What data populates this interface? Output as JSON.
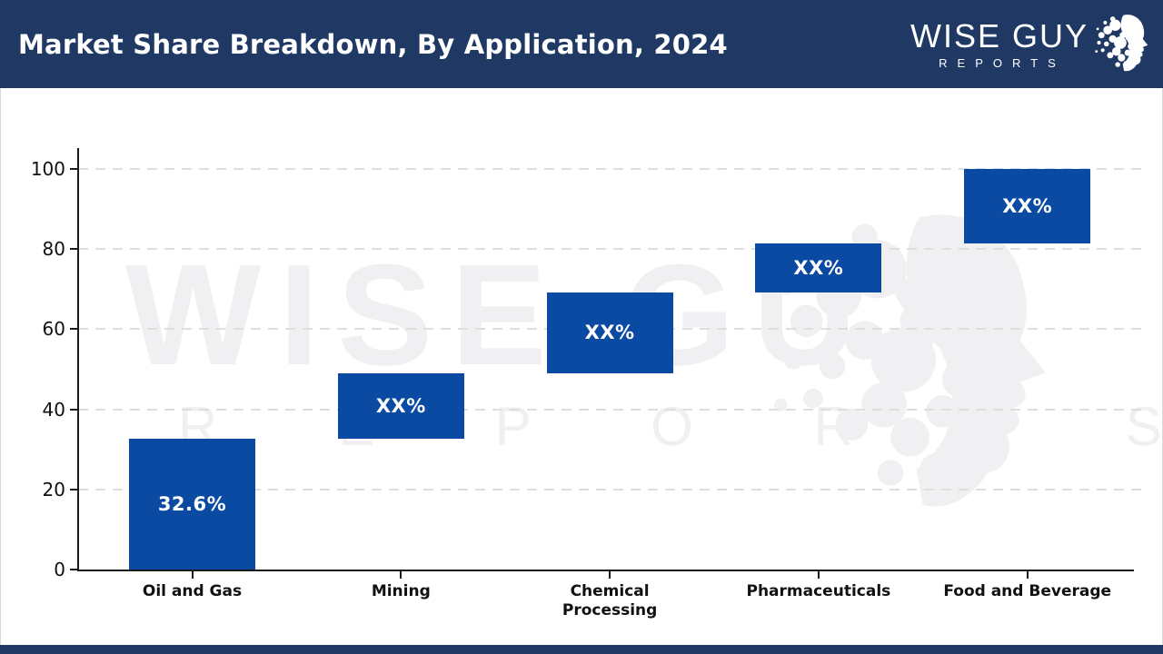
{
  "header": {
    "title": "Market Share Breakdown, By Application, 2024",
    "bg_color": "#203864",
    "text_color": "#ffffff",
    "logo": {
      "brand_top": "WISE GUY",
      "brand_bottom": "REPORTS",
      "head_icon": "dotted-head-profile-icon"
    }
  },
  "watermark": {
    "line1": "WISE GUY",
    "line2": "R E P O R T S",
    "head_icon": "dotted-head-profile-watermark",
    "color": "#f0f0f3"
  },
  "chart_data": {
    "type": "bar",
    "subtype": "waterfall",
    "title": "Market Share Breakdown, By Application, 2024",
    "xlabel": "",
    "ylabel": "",
    "categories": [
      "Oil and Gas",
      "Mining",
      "Chemical Processing",
      "Pharmaceuticals",
      "Food and Beverage"
    ],
    "category_display_lines": [
      [
        "Oil and Gas"
      ],
      [
        "Mining"
      ],
      [
        "Chemical",
        "Processing"
      ],
      [
        "Pharmaceuticals"
      ],
      [
        "Food and Beverage"
      ]
    ],
    "segments": [
      {
        "category": "Oil and Gas",
        "start": 0,
        "end": 32.6,
        "label": "32.6%"
      },
      {
        "category": "Mining",
        "start": 32.6,
        "end": 49.0,
        "label": "XX%"
      },
      {
        "category": "Chemical Processing",
        "start": 49.0,
        "end": 69.2,
        "label": "XX%"
      },
      {
        "category": "Pharmaceuticals",
        "start": 69.2,
        "end": 81.4,
        "label": "XX%"
      },
      {
        "category": "Food and Beverage",
        "start": 81.4,
        "end": 100,
        "label": "XX%"
      }
    ],
    "yticks": [
      0,
      20,
      40,
      60,
      80,
      100
    ],
    "ylim": [
      0,
      105
    ],
    "grid": "horizontal dashed at 20/40/60/80/100",
    "legend": "none",
    "bar_color": "#0b4aa2",
    "bar_label_color": "#ffffff",
    "axis_color": "#1a1a1a"
  },
  "footer": {
    "bg_color": "#203864"
  }
}
